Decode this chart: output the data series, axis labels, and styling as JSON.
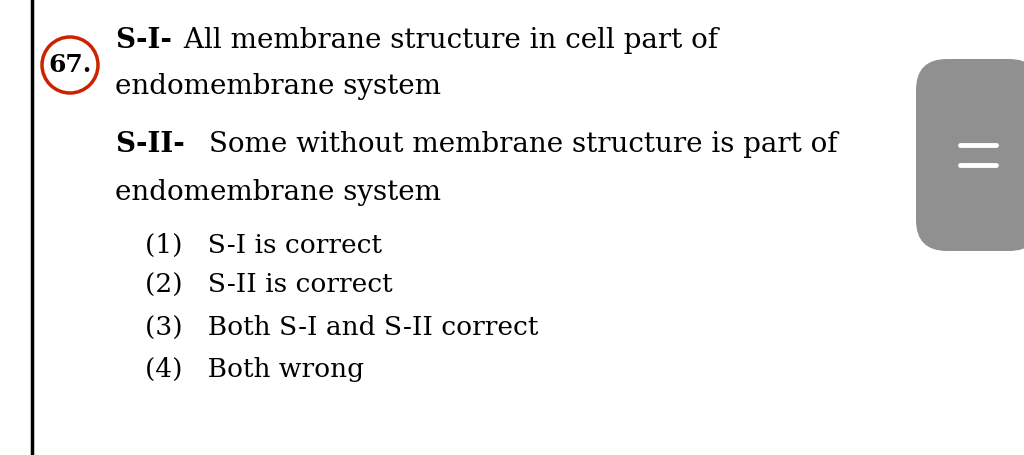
{
  "background_color": "#ffffff",
  "question_number": "67.",
  "circle_color": "#cc2200",
  "text_color": "#000000",
  "s1_label": "S-I-",
  "s1_line1": " All membrane structure in cell part of",
  "s1_line2": "endomembrane system",
  "s2_label": "S-II-",
  "s2_line1": " Some without membrane structure is part of",
  "s2_line2": "endomembrane system",
  "options": [
    "(1)   S-I is correct",
    "(2)   S-II is correct",
    "(3)   Both S-I and S-II correct",
    "(4)   Both wrong"
  ],
  "pill_color": "#909090",
  "pill_line_color": "#ffffff",
  "left_border_color": "#000000",
  "font_size_main": 20,
  "font_size_options": 19,
  "font_size_qnum": 18
}
